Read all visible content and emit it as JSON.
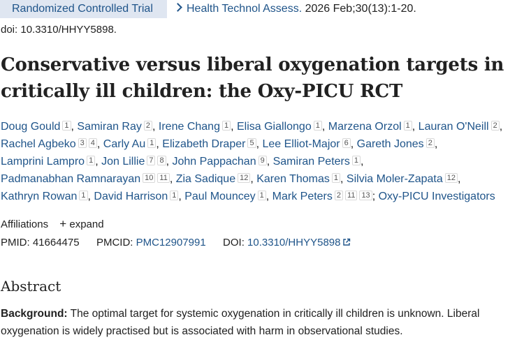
{
  "header": {
    "publication_type": "Randomized Controlled Trial",
    "journal": "Health Technol Assess.",
    "citation": "2026 Feb;30(13):1-20.",
    "doi_line": "doi: 10.3310/HHYY5898."
  },
  "article": {
    "title": "Conservative versus liberal oxygenation targets in critically ill children: the Oxy-PICU RCT"
  },
  "authors": [
    {
      "name": "Doug Gould",
      "aff": [
        "1"
      ]
    },
    {
      "name": "Samiran Ray",
      "aff": [
        "2"
      ]
    },
    {
      "name": "Irene Chang",
      "aff": [
        "1"
      ]
    },
    {
      "name": "Elisa Giallongo",
      "aff": [
        "1"
      ]
    },
    {
      "name": "Marzena Orzol",
      "aff": [
        "1"
      ]
    },
    {
      "name": "Lauran O'Neill",
      "aff": [
        "2"
      ]
    },
    {
      "name": "Rachel Agbeko",
      "aff": [
        "3",
        "4"
      ]
    },
    {
      "name": "Carly Au",
      "aff": [
        "1"
      ]
    },
    {
      "name": "Elizabeth Draper",
      "aff": [
        "5"
      ]
    },
    {
      "name": "Lee Elliot-Major",
      "aff": [
        "6"
      ]
    },
    {
      "name": "Gareth Jones",
      "aff": [
        "2"
      ]
    },
    {
      "name": "Lamprini Lampro",
      "aff": [
        "1"
      ]
    },
    {
      "name": "Jon Lillie",
      "aff": [
        "7",
        "8"
      ]
    },
    {
      "name": "John Pappachan",
      "aff": [
        "9"
      ]
    },
    {
      "name": "Samiran Peters",
      "aff": [
        "1"
      ]
    },
    {
      "name": "Padmanabhan Ramnarayan",
      "aff": [
        "10",
        "11"
      ]
    },
    {
      "name": "Zia Sadique",
      "aff": [
        "12"
      ]
    },
    {
      "name": "Karen Thomas",
      "aff": [
        "1"
      ]
    },
    {
      "name": "Silvia Moler-Zapata",
      "aff": [
        "12"
      ]
    },
    {
      "name": "Kathryn Rowan",
      "aff": [
        "1"
      ]
    },
    {
      "name": "David Harrison",
      "aff": [
        "1"
      ]
    },
    {
      "name": "Paul Mouncey",
      "aff": [
        "1"
      ]
    },
    {
      "name": "Mark Peters",
      "aff": [
        "2",
        "11",
        "13"
      ]
    }
  ],
  "author_lines": [
    [
      0,
      1,
      2,
      3,
      4,
      5
    ],
    [
      6,
      7,
      8,
      9,
      10
    ],
    [
      11,
      12,
      13,
      14
    ],
    [
      15,
      16,
      17,
      18
    ],
    [
      19,
      20,
      21,
      22
    ]
  ],
  "group_author": "Oxy-PICU Investigators",
  "affiliations": {
    "label": "Affiliations",
    "expand": "expand",
    "expand_icon": "plus-icon"
  },
  "identifiers": {
    "pmid_label": "PMID:",
    "pmid": "41664475",
    "pmcid_label": "PMCID:",
    "pmcid": "PMC12907991",
    "doi_label": "DOI:",
    "doi": "10.3310/HHYY5898",
    "doi_icon": "external-link-icon"
  },
  "abstract": {
    "heading": "Abstract",
    "background_label": "Background:",
    "background_text": " The optimal target for systemic oxygenation in critically ill children is unknown. Liberal oxygenation is widely practised but is associated with harm in observational studies."
  },
  "colors": {
    "link": "#20558a",
    "badge_bg": "#dfe6f1",
    "text": "#212121"
  }
}
